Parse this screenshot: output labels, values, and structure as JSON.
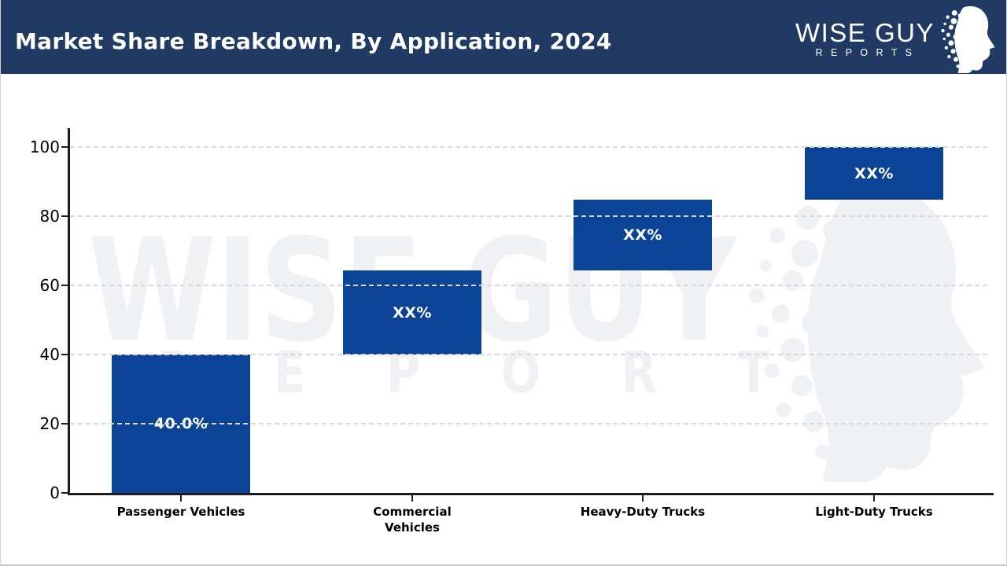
{
  "header": {
    "title": "Market Share Breakdown, By Application, 2024",
    "logo_line1": "WISE GUY",
    "logo_line2": "R E P O R T S"
  },
  "watermark": {
    "line1": "WISE GUY",
    "line2": "R E P O R T S"
  },
  "colors": {
    "header_bg": "#203a64",
    "bar_blue": "#0b4396",
    "gridline": "#d9d9d9",
    "watermark": "#f0f1f4"
  },
  "chart_data": {
    "type": "bar",
    "variant": "waterfall",
    "title": "Market Share Breakdown, By Application, 2024",
    "categories": [
      "Passenger Vehicles",
      "Commercial Vehicles",
      "Heavy-Duty Trucks",
      "Light-Duty Trucks"
    ],
    "category_label_lines": [
      [
        "Passenger Vehicles"
      ],
      [
        "Commercial",
        "Vehicles"
      ],
      [
        "Heavy-Duty Trucks"
      ],
      [
        "Light-Duty Trucks"
      ]
    ],
    "segments": [
      {
        "category": "Passenger Vehicles",
        "start": 0,
        "end": 40,
        "label": "40.0%"
      },
      {
        "category": "Commercial Vehicles",
        "start": 40,
        "end": 64.3,
        "label": "XX%"
      },
      {
        "category": "Heavy-Duty Trucks",
        "start": 64.3,
        "end": 84.7,
        "label": "XX%"
      },
      {
        "category": "Light-Duty Trucks",
        "start": 84.7,
        "end": 100,
        "label": "XX%"
      }
    ],
    "y_ticks": [
      0,
      20,
      40,
      60,
      80,
      100
    ],
    "ylim": [
      0,
      105
    ],
    "xlabel": "",
    "ylabel": "",
    "grid": "horizontal-dashed",
    "legend_position": "none",
    "bar_color": "#0b4396",
    "bar_label_color": "#ffffff"
  }
}
